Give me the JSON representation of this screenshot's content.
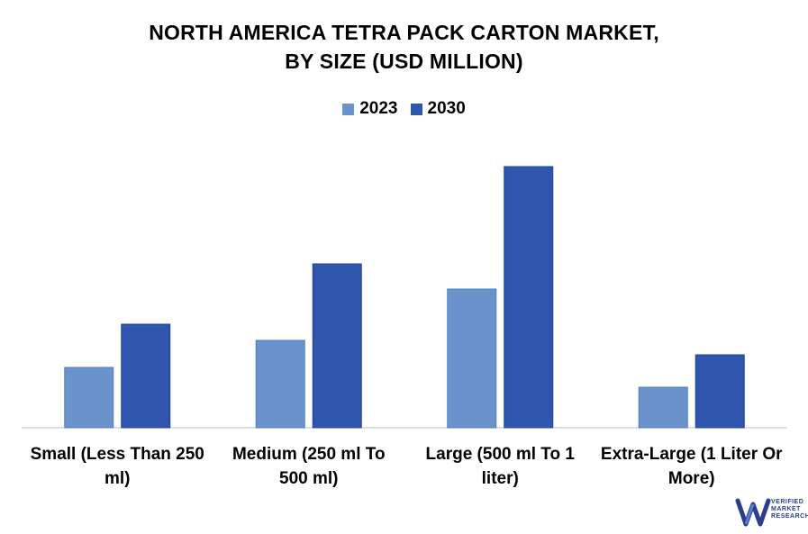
{
  "title_line1": "NORTH AMERICA TETRA PACK CARTON MARKET,",
  "title_line2": "BY SIZE (USD MILLION)",
  "logo": {
    "line1": "VERIFIED",
    "line2": "MARKET",
    "line3": "RESEARCH"
  },
  "chart_data": {
    "type": "bar",
    "categories": [
      "Small (Less Than 250 ml)",
      "Medium (250 ml To 500 ml)",
      "Large (500 ml To 1 liter)",
      "Extra-Large (1 Liter Or More)"
    ],
    "category_lines": [
      [
        "Small (Less Than 250",
        "ml)"
      ],
      [
        "Medium (250 ml To",
        "500 ml)"
      ],
      [
        "Large (500 ml To 1",
        "liter)"
      ],
      [
        "Extra-Large (1 Liter Or",
        "More)"
      ]
    ],
    "series": [
      {
        "name": "2023",
        "color": "#6a93cc",
        "values": [
          67,
          97,
          154,
          45
        ]
      },
      {
        "name": "2030",
        "color": "#2f55ad",
        "values": [
          115,
          182,
          290,
          81
        ]
      }
    ],
    "ylim": [
      0,
      320
    ],
    "grid": false,
    "legend_position": "top-center"
  }
}
